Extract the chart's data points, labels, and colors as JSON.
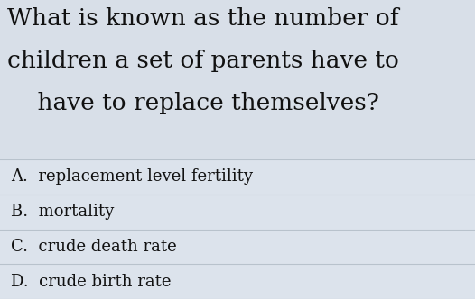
{
  "question_lines": [
    "What is known as the number of",
    "children a set of parents have to",
    "    have to replace themselves?"
  ],
  "options": [
    "A.  replacement level fertility",
    "B.  mortality",
    "C.  crude death rate",
    "D.  crude birth rate"
  ],
  "bg_color": "#d8dfe8",
  "option_bg_color": "#dce3ec",
  "separator_color": "#b8c2cc",
  "question_text_color": "#111111",
  "option_text_color": "#111111",
  "question_fontsize": 19,
  "option_fontsize": 13,
  "fig_width": 5.26,
  "fig_height": 3.32,
  "dpi": 100
}
